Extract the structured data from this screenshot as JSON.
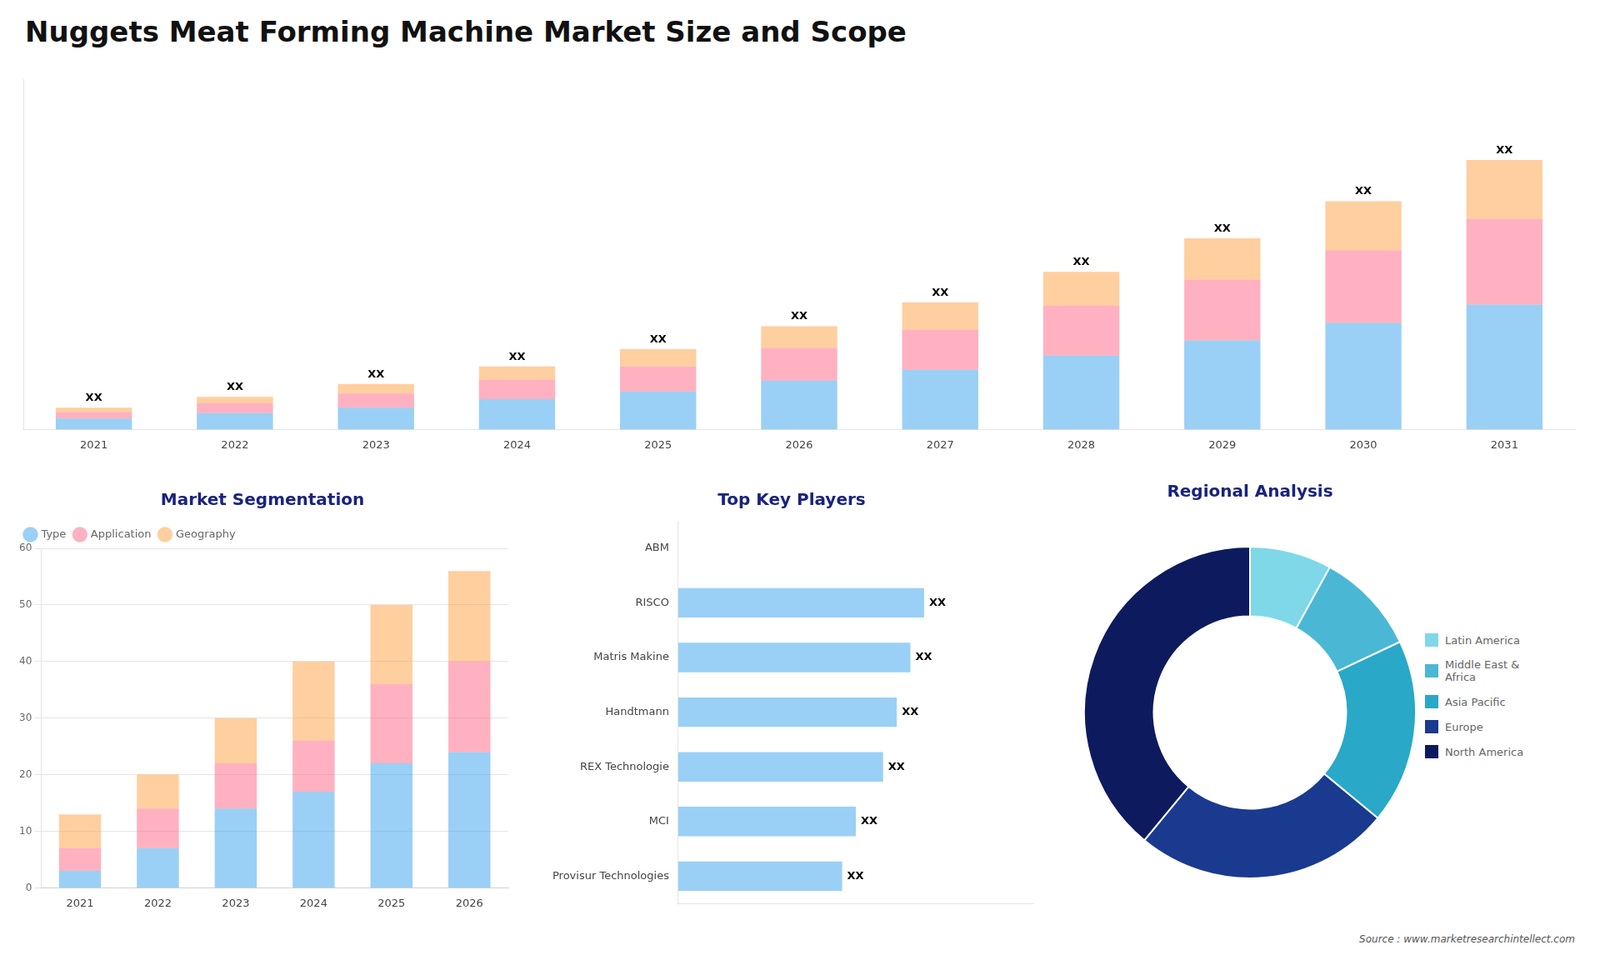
{
  "title": "Nuggets Meat Forming Machine Market Size and Scope",
  "annotations": [
    "Source : www.marketresearchintellect.com"
  ],
  "chart_data": [
    {
      "type": "bar",
      "stacked": true,
      "categories": [
        "2021",
        "2022",
        "2023",
        "2024",
        "2025",
        "2026",
        "2027",
        "2028",
        "2029",
        "2030",
        "2031"
      ],
      "series": [
        {
          "values": [
            1.0,
            1.5,
            2.0,
            2.8,
            3.5,
            4.5,
            5.5,
            6.8,
            8.2,
            9.8,
            11.5
          ]
        },
        {
          "values": [
            0.6,
            0.9,
            1.3,
            1.8,
            2.3,
            3.0,
            3.7,
            4.6,
            5.6,
            6.7,
            7.9
          ]
        },
        {
          "values": [
            0.4,
            0.6,
            0.9,
            1.2,
            1.6,
            2.0,
            2.5,
            3.1,
            3.8,
            4.5,
            5.4
          ]
        }
      ],
      "ylim": [
        0,
        32.24
      ],
      "tick_labels": "x",
      "grid": false,
      "annotations": [
        {
          "category": "2021",
          "text": "XX"
        },
        {
          "category": "2022",
          "text": "XX"
        },
        {
          "category": "2023",
          "text": "XX"
        },
        {
          "category": "2024",
          "text": "XX"
        },
        {
          "category": "2025",
          "text": "XX"
        },
        {
          "category": "2026",
          "text": "XX"
        },
        {
          "category": "2027",
          "text": "XX"
        },
        {
          "category": "2028",
          "text": "XX"
        },
        {
          "category": "2029",
          "text": "XX"
        },
        {
          "category": "2030",
          "text": "XX"
        },
        {
          "category": "2031",
          "text": "XX"
        }
      ]
    },
    {
      "type": "bar",
      "title": "Market Segmentation",
      "stacked": true,
      "categories": [
        "2021",
        "2022",
        "2023",
        "2024",
        "2025",
        "2026"
      ],
      "series": [
        {
          "name": "Type",
          "values": [
            3,
            7,
            14,
            17,
            22,
            24
          ]
        },
        {
          "name": "Application",
          "values": [
            4,
            7,
            8,
            9,
            14,
            16
          ]
        },
        {
          "name": "Geography",
          "values": [
            6,
            6,
            8,
            14,
            14,
            16
          ]
        }
      ],
      "ylim": [
        0,
        60
      ],
      "yticks": [
        0,
        10,
        20,
        30,
        40,
        50,
        60
      ],
      "grid": true,
      "legend": "upper left",
      "marker": "circle"
    },
    {
      "type": "bar",
      "title": "Top Key Players",
      "orientation": "horizontal",
      "categories": [
        "ABM",
        "RISCO",
        "Matris Makine",
        "Handtmann",
        "REX Technologie",
        "MCI",
        "Provisur Technologies"
      ],
      "values": [
        0,
        9.0,
        8.5,
        8.0,
        7.5,
        6.5,
        6.0
      ],
      "xlim": [
        0,
        13
      ],
      "tick_labels": "y",
      "grid": false,
      "annotations": [
        {
          "category": "RISCO",
          "text": "XX"
        },
        {
          "category": "Matris Makine",
          "text": "XX"
        },
        {
          "category": "Handtmann",
          "text": "XX"
        },
        {
          "category": "REX Technologie",
          "text": "XX"
        },
        {
          "category": "MCI",
          "text": "XX"
        },
        {
          "category": "Provisur Technologies",
          "text": "XX"
        }
      ]
    },
    {
      "type": "doughnut",
      "title": "Regional Analysis",
      "categories": [
        "Latin America",
        "Middle East &\nAfrica",
        "Asia Pacific",
        "Europe",
        "North America"
      ],
      "values": [
        8,
        10,
        18,
        25,
        39
      ],
      "colors": [
        "#7ed8e8",
        "#4ab8d4",
        "#29a8c8",
        "#1a3a8f",
        "#0d1b5e"
      ],
      "legend": "right"
    }
  ]
}
